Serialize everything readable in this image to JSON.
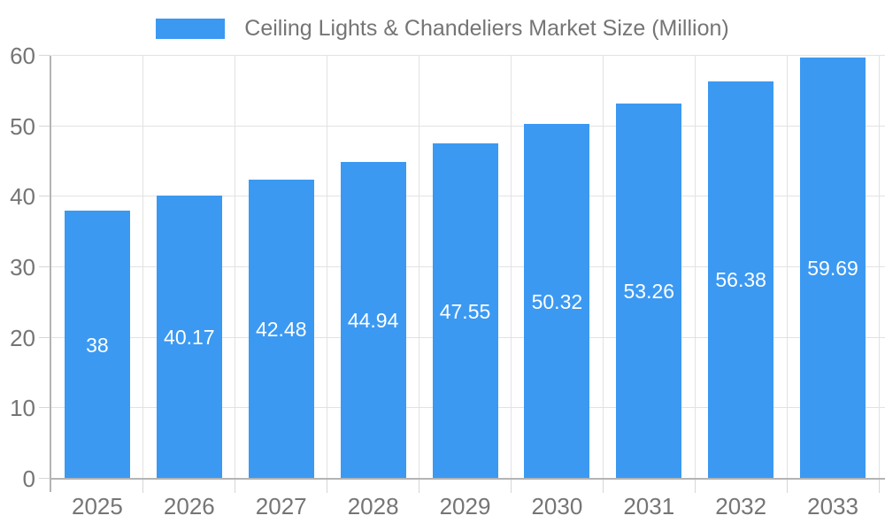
{
  "legend": {
    "label": "Ceiling Lights & Chandeliers Market Size (Million)",
    "swatch_color": "#3b99f2"
  },
  "chart_data": {
    "type": "bar",
    "title": "Ceiling Lights & Chandeliers Market Size (Million)",
    "categories": [
      "2025",
      "2026",
      "2027",
      "2028",
      "2029",
      "2030",
      "2031",
      "2032",
      "2033"
    ],
    "values": [
      38,
      40.17,
      42.48,
      44.94,
      47.55,
      50.32,
      53.26,
      56.38,
      59.69
    ],
    "value_labels": [
      "38",
      "40.17",
      "42.48",
      "44.94",
      "47.55",
      "50.32",
      "53.26",
      "56.38",
      "59.69"
    ],
    "xlabel": "",
    "ylabel": "",
    "ylim": [
      0,
      60
    ],
    "yticks": [
      0,
      10,
      20,
      30,
      40,
      50,
      60
    ],
    "grid": true,
    "legend_position": "top",
    "colors": {
      "bar": "#3b99f2",
      "axis_line": "#b4b4b4",
      "gridline": "#e2e2e2",
      "tick": "#d6d6d6",
      "axis_text": "#757575",
      "value_text": "#ffffff"
    }
  }
}
